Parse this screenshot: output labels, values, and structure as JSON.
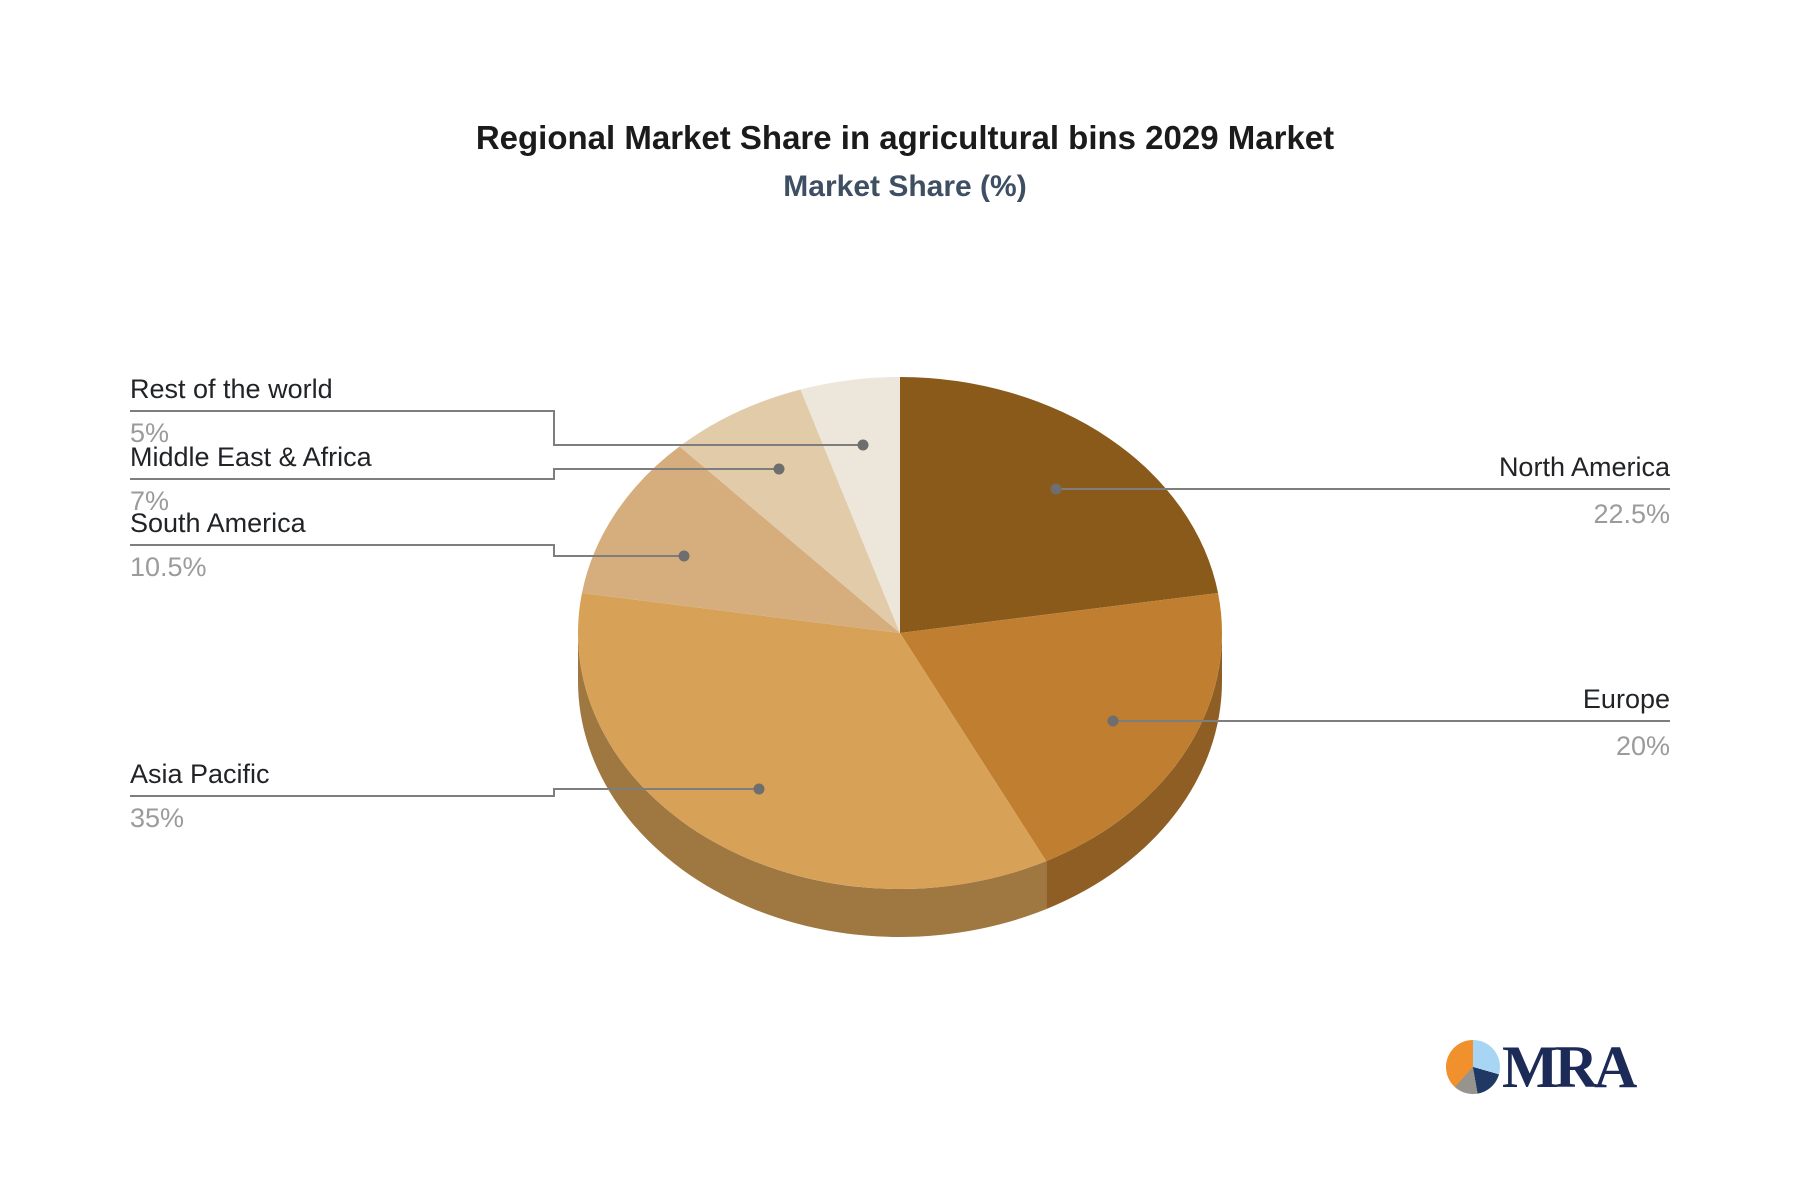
{
  "title": "Regional Market Share in agricultural bins 2029 Market",
  "subtitle": "Market Share (%)",
  "chart_data": {
    "type": "pie",
    "title": "Regional Market Share in agricultural bins 2029 Market",
    "subtitle": "Market Share (%)",
    "unit": "%",
    "style": "3d",
    "direction": "clockwise",
    "start_angle": "12-o'clock",
    "legend_position": "callout-labels",
    "series": [
      {
        "name": "North America",
        "value": 22.5,
        "display": "22.5%",
        "color": "#8A5A1B",
        "label_side": "right"
      },
      {
        "name": "Europe",
        "value": 20,
        "display": "20%",
        "color": "#C07F30",
        "label_side": "right"
      },
      {
        "name": "Asia Pacific",
        "value": 35,
        "display": "35%",
        "color": "#D7A157",
        "label_side": "left"
      },
      {
        "name": "South America",
        "value": 10.5,
        "display": "10.5%",
        "color": "#D6AE7E",
        "label_side": "left"
      },
      {
        "name": "Middle East & Africa",
        "value": 7,
        "display": "7%",
        "color": "#E2CBA9",
        "label_side": "left"
      },
      {
        "name": "Rest of the world",
        "value": 5,
        "display": "5%",
        "color": "#EDE6DB",
        "label_side": "left"
      }
    ],
    "leader_line_color": "#7e7e7e",
    "label_color": "#212326",
    "value_color": "#9b9b9b"
  },
  "logo": {
    "text": "MRA",
    "icon_colors": [
      "#F0912D",
      "#A9D5F5",
      "#1F3864",
      "#97938D"
    ],
    "text_color": "#1C2A57"
  }
}
